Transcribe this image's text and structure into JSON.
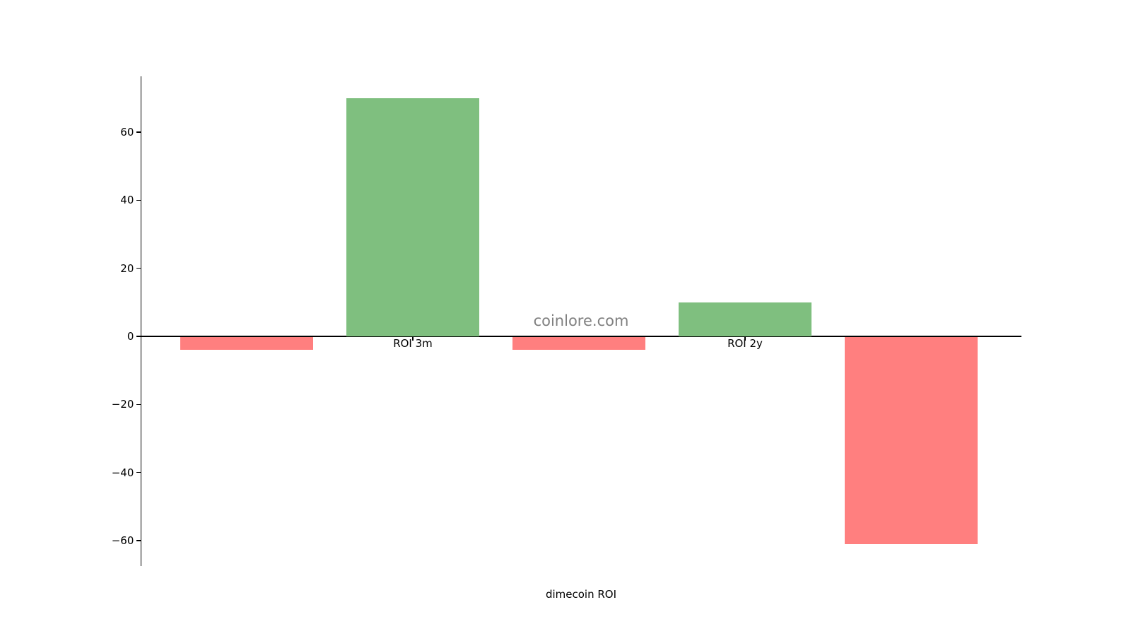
{
  "watermark": {
    "text": "coinlore.com",
    "color": "#808080"
  },
  "chart_data": {
    "type": "bar",
    "title": "",
    "xlabel": "dimecoin ROI",
    "ylabel": "",
    "categories": [
      "",
      "ROI 3m",
      "",
      "ROI 2y",
      ""
    ],
    "values": [
      -4,
      70,
      -4,
      10,
      -61
    ],
    "series_name": "dimecoin ROI",
    "positive_color": "#7fbf7f",
    "negative_color": "#ff7f7f",
    "axis_color": "#000000",
    "yticks": [
      60,
      40,
      20,
      0,
      -20,
      -40,
      -60
    ],
    "ytick_labels": [
      "60",
      "40",
      "20",
      "0",
      "−20",
      "−40",
      "−60"
    ],
    "visible_xticks": [
      {
        "index": 1,
        "label": "ROI 3m"
      },
      {
        "index": 3,
        "label": "ROI 2y"
      }
    ],
    "ylim": [
      -67.5,
      76.4
    ],
    "grid": false,
    "legend": "none",
    "x_axis_position": "zero"
  }
}
